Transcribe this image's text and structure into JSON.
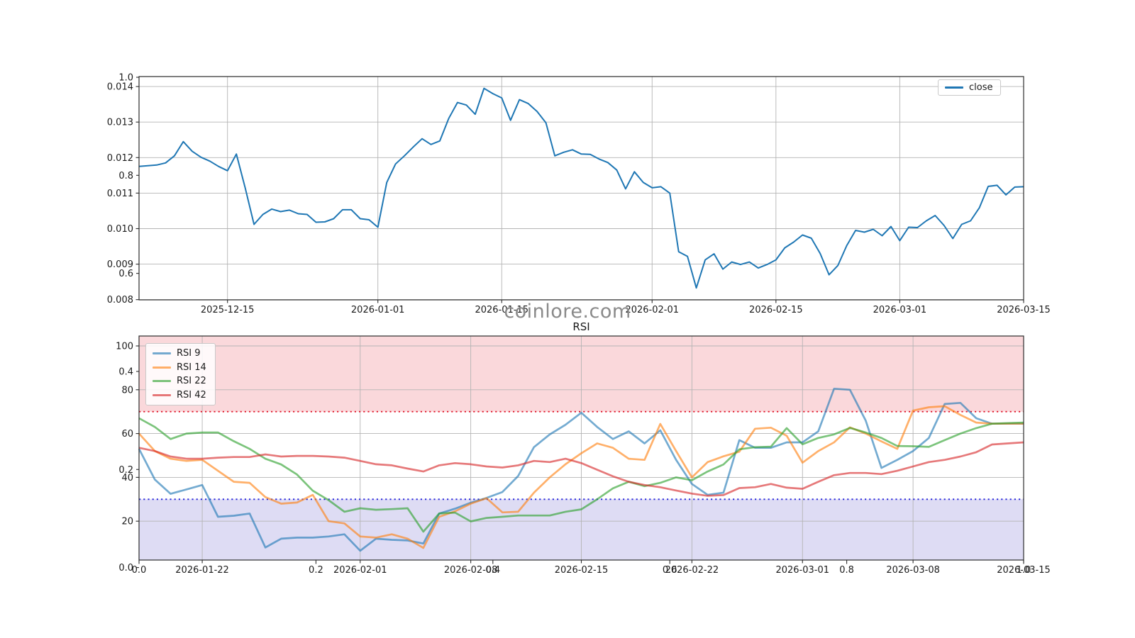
{
  "watermark": "coinlore.com",
  "rsi_title": "RSI",
  "colors": {
    "close": "#1f77b4",
    "rsi9": "#1f77b4",
    "rsi14": "#ff7f0e",
    "rsi22": "#2ca02c",
    "rsi42": "#d62728",
    "overbought_fill": "#fad8db",
    "oversold_fill": "#dedcf4",
    "overbought_line": "#e0162b",
    "oversold_line": "#2424d9",
    "grid": "#b4b4b4",
    "spine": "#2b2b2b",
    "watermark_gray": "#8a8a8a"
  },
  "figure_axis": {
    "xtick_labels": [
      "0.0",
      "0.2",
      "0.4",
      "0.6",
      "0.8",
      "1.0"
    ],
    "ytick_labels": [
      "1.0",
      "0.8",
      "0.6",
      "0.4",
      "0.2",
      "0.0"
    ]
  },
  "chart_data": [
    {
      "type": "line",
      "name": "price",
      "start_date": "2025-12-05",
      "interval_days": 1,
      "ylim": [
        0.008,
        0.0143
      ],
      "grid": true,
      "legend": {
        "position": "upper right",
        "entries": [
          "close"
        ]
      },
      "ytick_labels": [
        "0.008",
        "0.009",
        "0.010",
        "0.011",
        "0.012",
        "0.013",
        "0.014"
      ],
      "xtick_labels": [
        "2025-12-15",
        "2026-01-01",
        "2026-01-15",
        "2026-02-01",
        "2026-02-15",
        "2026-03-01",
        "2026-03-15"
      ],
      "series": [
        {
          "name": "close",
          "color": "#1f77b4",
          "values": [
            0.01175,
            0.01177,
            0.01179,
            0.01185,
            0.01205,
            0.01245,
            0.01218,
            0.01201,
            0.0119,
            0.01175,
            0.01163,
            0.0121,
            0.01115,
            0.01012,
            0.0104,
            0.01055,
            0.01048,
            0.01052,
            0.01042,
            0.0104,
            0.01018,
            0.01019,
            0.01028,
            0.01053,
            0.01053,
            0.01028,
            0.01025,
            0.01004,
            0.0113,
            0.01182,
            0.01205,
            0.0123,
            0.01253,
            0.01237,
            0.01247,
            0.0131,
            0.01355,
            0.01348,
            0.01322,
            0.01395,
            0.0138,
            0.01368,
            0.01305,
            0.01363,
            0.01352,
            0.0133,
            0.01298,
            0.01205,
            0.01215,
            0.01222,
            0.0121,
            0.01209,
            0.01196,
            0.01186,
            0.01165,
            0.01112,
            0.0116,
            0.0113,
            0.01115,
            0.01118,
            0.011,
            0.00935,
            0.00922,
            0.00833,
            0.00912,
            0.00929,
            0.00886,
            0.00906,
            0.00899,
            0.00906,
            0.00889,
            0.00899,
            0.00912,
            0.00946,
            0.00962,
            0.00982,
            0.00973,
            0.0093,
            0.0087,
            0.00896,
            0.00952,
            0.00995,
            0.0099,
            0.00998,
            0.0098,
            0.01006,
            0.00966,
            0.01004,
            0.01003,
            0.01022,
            0.01037,
            0.01009,
            0.00972,
            0.01012,
            0.01022,
            0.01059,
            0.01119,
            0.01122,
            0.01095,
            0.01117,
            0.01118
          ]
        }
      ]
    },
    {
      "type": "line",
      "name": "rsi",
      "title": "RSI",
      "start_date": "2026-01-18",
      "interval_days": 1,
      "ylim": [
        0,
        100
      ],
      "grid": true,
      "overbought_level": 70,
      "oversold_level": 30,
      "bands": {
        "overbought": [
          70,
          100
        ],
        "oversold": [
          0,
          30
        ]
      },
      "legend": {
        "position": "upper left",
        "entries": [
          "RSI 9",
          "RSI 14",
          "RSI 22",
          "RSI 42"
        ]
      },
      "yticks": [
        20,
        40,
        60,
        80,
        100
      ],
      "ytick_labels": [
        "20",
        "40",
        "60",
        "80",
        "100"
      ],
      "xtick_labels": [
        "2026-01-22",
        "2026-02-01",
        "2026-02-08",
        "2026-02-15",
        "2026-02-22",
        "2026-03-01",
        "2026-03-08",
        "2026-03-15"
      ],
      "series": [
        {
          "name": "RSI 9",
          "color": "#1f77b4",
          "values": [
            53,
            39,
            32.5,
            34.5,
            36.5,
            22,
            22.5,
            23.5,
            8,
            12,
            12.5,
            12.5,
            13,
            14,
            6.5,
            12,
            11.5,
            11.2,
            9.8,
            23.5,
            25.7,
            28.4,
            30.6,
            33.3,
            40.6,
            53.8,
            59.6,
            64,
            69.5,
            63,
            57.5,
            61,
            55.5,
            61.5,
            48,
            37,
            32,
            33,
            57,
            53.5,
            53.5,
            56,
            56,
            61,
            80.5,
            80,
            66,
            44.3,
            48,
            52,
            58,
            73.5,
            74,
            67,
            64.5,
            64.5,
            64.5
          ]
        },
        {
          "name": "RSI 14",
          "color": "#ff7f0e",
          "values": [
            60,
            52,
            48.5,
            47.5,
            48,
            43,
            38,
            37.5,
            31,
            28,
            28.5,
            32,
            20,
            19,
            13,
            12.5,
            14,
            12,
            7.8,
            22,
            24.5,
            28,
            30.5,
            24,
            24.3,
            33,
            40,
            46,
            51,
            55.5,
            53.5,
            48.5,
            48,
            64.4,
            52,
            40,
            47,
            49.6,
            51.7,
            62.2,
            62.7,
            59,
            46.7,
            52,
            56,
            62.8,
            60,
            56.4,
            53,
            70.5,
            72,
            72.5,
            68.5,
            65,
            64.5,
            64.5,
            64.5
          ]
        },
        {
          "name": "RSI 22",
          "color": "#2ca02c",
          "values": [
            67,
            63,
            57.5,
            60,
            60.5,
            60.5,
            56.5,
            53,
            48.5,
            45.9,
            41.3,
            33.9,
            29.6,
            24.3,
            25.9,
            25.2,
            25.5,
            25.9,
            15.2,
            23.5,
            23.9,
            19.9,
            21.5,
            22,
            22.6,
            22.6,
            22.6,
            24.3,
            25.4,
            30,
            35,
            38,
            36,
            37.5,
            40,
            38.7,
            42.7,
            45.9,
            52.8,
            53.8,
            54,
            62.5,
            55.1,
            58,
            59.6,
            62.6,
            60.5,
            58,
            54.3,
            54.2,
            53.9,
            57,
            60,
            62.5,
            64.5,
            64.8,
            65
          ]
        },
        {
          "name": "RSI 42",
          "color": "#d62728",
          "values": [
            53.5,
            52,
            49.5,
            48.5,
            48.5,
            49,
            49.3,
            49.3,
            50.5,
            49.5,
            49.8,
            49.8,
            49.5,
            49,
            47.5,
            46,
            45.5,
            44,
            42.7,
            45.5,
            46.5,
            46,
            45,
            44.5,
            45.5,
            47.5,
            47,
            48.5,
            46.5,
            43.5,
            40.5,
            38,
            36.5,
            35.5,
            34,
            32.6,
            31.6,
            31.9,
            35.1,
            35.5,
            37,
            35.3,
            34.8,
            38,
            41,
            42,
            42,
            41.5,
            43,
            45,
            47,
            48,
            49.5,
            51.5,
            55,
            55.5,
            56
          ]
        }
      ]
    }
  ]
}
